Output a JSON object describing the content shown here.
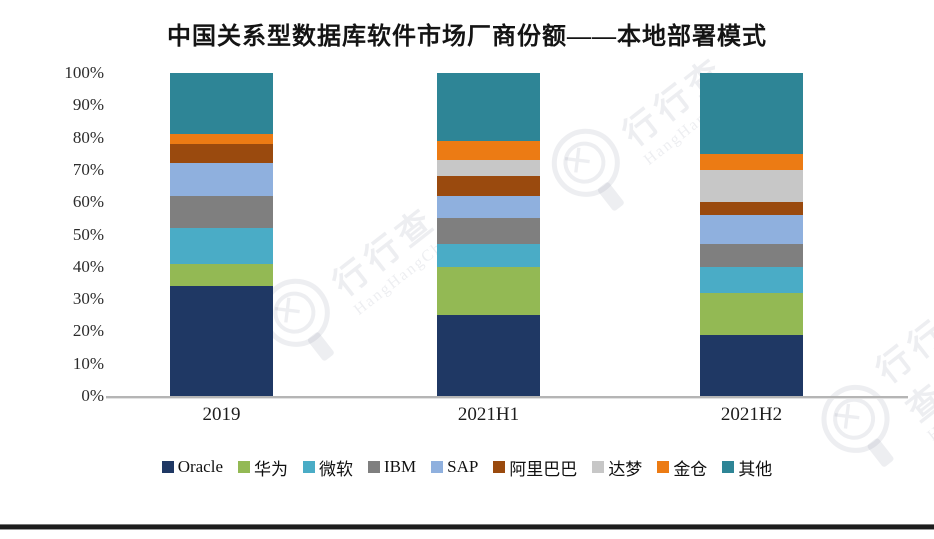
{
  "title": "中国关系型数据库软件市场厂商份额——本地部署模式",
  "watermark": {
    "cn": "行行查",
    "en": "HangHangCha"
  },
  "chart_data": {
    "type": "bar",
    "stacked": true,
    "title": "中国关系型数据库软件市场厂商份额——本地部署模式",
    "xlabel": "",
    "ylabel": "",
    "ylim": [
      0,
      100
    ],
    "grid": false,
    "legend_position": "bottom",
    "y_ticks": [
      "0%",
      "10%",
      "20%",
      "30%",
      "40%",
      "50%",
      "60%",
      "70%",
      "80%",
      "90%",
      "100%"
    ],
    "categories": [
      "2019",
      "2021H1",
      "2021H2"
    ],
    "series": [
      {
        "name": "Oracle",
        "color": "#1F3864",
        "values": [
          34,
          25,
          19
        ]
      },
      {
        "name": "华为",
        "color": "#93B954",
        "values": [
          7,
          15,
          13
        ]
      },
      {
        "name": "微软",
        "color": "#4AACC6",
        "values": [
          11,
          7,
          8
        ]
      },
      {
        "name": "IBM",
        "color": "#7F7F7F",
        "values": [
          10,
          8,
          7
        ]
      },
      {
        "name": "SAP",
        "color": "#8FB0DE",
        "values": [
          10,
          7,
          9
        ]
      },
      {
        "name": "阿里巴巴",
        "color": "#9A4A0E",
        "values": [
          6,
          6,
          4
        ]
      },
      {
        "name": "达梦",
        "color": "#C7C7C7",
        "values": [
          0,
          5,
          10
        ]
      },
      {
        "name": "金仓",
        "color": "#EC7B14",
        "values": [
          3,
          6,
          5
        ]
      },
      {
        "name": "其他",
        "color": "#2E8596",
        "values": [
          19,
          21,
          25
        ]
      }
    ]
  }
}
